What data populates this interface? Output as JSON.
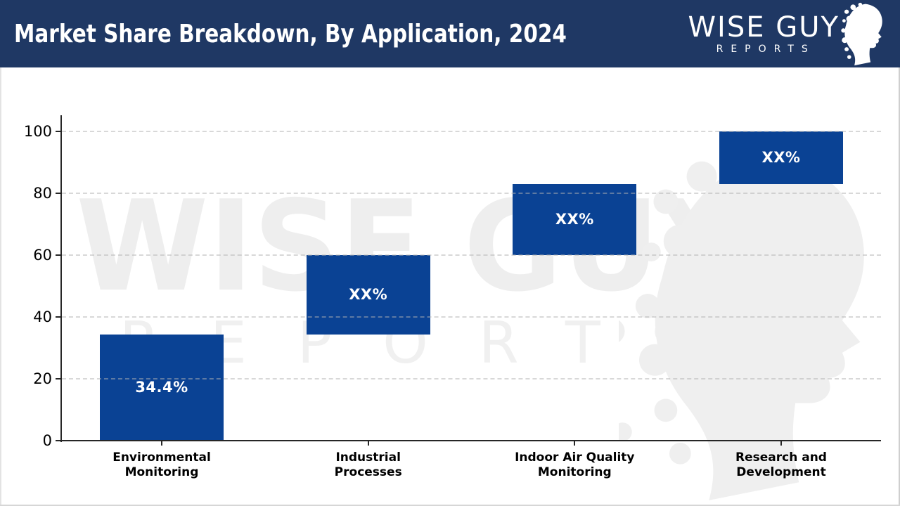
{
  "header": {
    "title": "Market Share Breakdown, By Application, 2024",
    "brand": {
      "line1": "WISE GUY",
      "line2": "REPORTS"
    }
  },
  "watermark": {
    "line1": "WISE GUY",
    "line2": "REPORTS"
  },
  "colors": {
    "header_navy": "#1f3864",
    "bar_blue": "#0a4294",
    "watermark_gray": "#efefef",
    "axis_black": "#262626",
    "gridline_gray": "#d7d7d7",
    "bar_label_white": "#ffffff"
  },
  "chart_data": {
    "type": "bar",
    "subtype": "waterfall-floating-bars",
    "title": "Market Share Breakdown, By Application, 2024",
    "xlabel": "",
    "ylabel": "",
    "ylim": [
      0,
      100
    ],
    "yticks": [
      0,
      20,
      40,
      60,
      80,
      100
    ],
    "grid": "dashed horizontal gridlines",
    "legend": "none",
    "categories": [
      "Environmental Monitoring",
      "Industrial Processes",
      "Indoor Air Quality Monitoring",
      "Research and Development"
    ],
    "segments": [
      {
        "category": "Environmental Monitoring",
        "label_lines": [
          "Environmental",
          "Monitoring"
        ],
        "start": 0,
        "end": 34.4,
        "value": 34.4,
        "displayed_label": "34.4%"
      },
      {
        "category": "Industrial Processes",
        "label_lines": [
          "Industrial",
          "Processes"
        ],
        "start": 34.4,
        "end": 60,
        "value": 25.6,
        "displayed_label": "XX%"
      },
      {
        "category": "Indoor Air Quality Monitoring",
        "label_lines": [
          "Indoor Air Quality",
          "Monitoring"
        ],
        "start": 60,
        "end": 83,
        "value": 23,
        "displayed_label": "XX%"
      },
      {
        "category": "Research and Development",
        "label_lines": [
          "Research and",
          "Development"
        ],
        "start": 83,
        "end": 100,
        "value": 17,
        "displayed_label": "XX%"
      }
    ]
  }
}
